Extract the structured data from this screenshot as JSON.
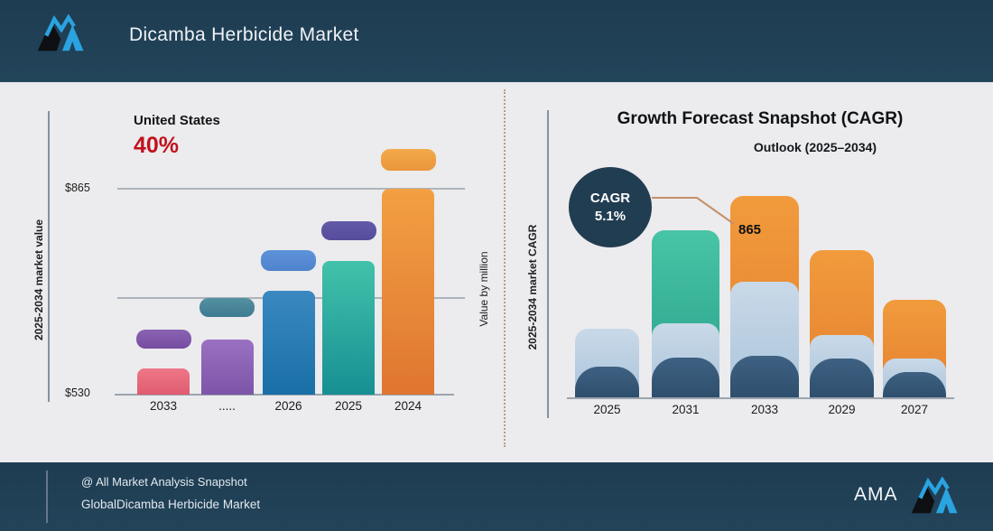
{
  "header": {
    "title": "Dicamba Herbicide Market",
    "logo_icon": "ama-logo"
  },
  "divider_label": "Value by million",
  "chart_data": [
    {
      "type": "bar",
      "panel": "left",
      "title": "United States",
      "highlight_value": "40%",
      "ylabel": "2025-2034 market value",
      "yticks": [
        {
          "label": "$865",
          "value": 865
        },
        {
          "label": "$530",
          "value": 530
        }
      ],
      "ylim": [
        530,
        940
      ],
      "gridline_values": [
        865,
        690
      ],
      "grid": "horizontal lines at $865 and mid-level, baseline at $530",
      "categories": [
        "2033",
        ".....",
        "2026",
        "2025",
        "2024"
      ],
      "values": [
        573,
        620,
        699,
        747,
        865
      ],
      "floating_caps": [
        [
          605,
          635
        ],
        [
          656,
          687
        ],
        [
          731,
          764
        ],
        [
          780,
          811
        ],
        [
          894,
          929
        ]
      ],
      "bar_color_keys": [
        "rose",
        "purple",
        "blue",
        "teal",
        "orange"
      ],
      "cap_color_keys": [
        "purpleCap",
        "steelTealCap",
        "lightBlueCap",
        "indigoCap",
        "orangeCap"
      ]
    },
    {
      "type": "stacked-bar",
      "panel": "right",
      "title": "Growth Forecast Snapshot (CAGR)",
      "subtitle": "Outlook (2025–2034)",
      "ylabel": "2025-2034 market CAGR",
      "badge": {
        "line1": "CAGR",
        "line2": "5.1%"
      },
      "annotation": {
        "text": "865",
        "category": "2033"
      },
      "categories": [
        "2025",
        "2031",
        "2033",
        "2029",
        "2027"
      ],
      "series": [
        {
          "name": "base",
          "color_key": "navy",
          "values": [
            34,
            44,
            46,
            43,
            28
          ]
        },
        {
          "name": "mid",
          "color_key": "lightBlue",
          "values": [
            42,
            38,
            82,
            26,
            15
          ]
        },
        {
          "name": "top",
          "color_keys": [
            null,
            "tealTop",
            "orangeTop",
            "orangeTop",
            "orangeTop"
          ],
          "values": [
            0,
            103,
            95,
            94,
            65
          ]
        }
      ],
      "value_units": "relative height (no numeric axis shown)",
      "legend": "none"
    }
  ],
  "footer": {
    "line1": "@ All Market Analysis Snapshot",
    "line2": "GlobalDicamba Herbicide Market",
    "brand": "AMA",
    "logo_icon": "ama-logo"
  },
  "colors": {
    "header_bg": "#1f3e55",
    "footer_bg": "#1f3e55",
    "content_bg": "#ecebed",
    "accent_red": "#c1121f",
    "badge_bg": "#213d52",
    "connector": "#c2916b",
    "axis": "#84929f",
    "gridline": "#acb4bc",
    "divider_dotted": "#b3885f",
    "logo_blue": "#2aa3e0",
    "logo_black": "#0d0f12",
    "bars": {
      "rose": [
        "#ee7788",
        "#e05b70"
      ],
      "purple": [
        "#9a71c2",
        "#7c55a8"
      ],
      "blue": [
        "#3a89c0",
        "#1a6fa8"
      ],
      "teal": [
        "#42c2aa",
        "#178f93"
      ],
      "orange": [
        "#f2a043",
        "#df7530"
      ],
      "purpleCap": [
        "#8a63b3",
        "#744da0"
      ],
      "steelTealCap": [
        "#54919f",
        "#3f7a92"
      ],
      "lightBlueCap": [
        "#5e93da",
        "#4f83cc"
      ],
      "indigoCap": [
        "#635aa8",
        "#554c9c"
      ],
      "orangeCap": [
        "#f3a94a",
        "#eb963a"
      ],
      "navy": [
        "#3f6182",
        "#2e4f6d"
      ],
      "lightBlue": [
        "#c9d9e8",
        "#abc4db"
      ],
      "tealTop": [
        "#48c4a6",
        "#27a089"
      ],
      "orangeTop": [
        "#f19b3d",
        "#e5802f"
      ]
    }
  }
}
